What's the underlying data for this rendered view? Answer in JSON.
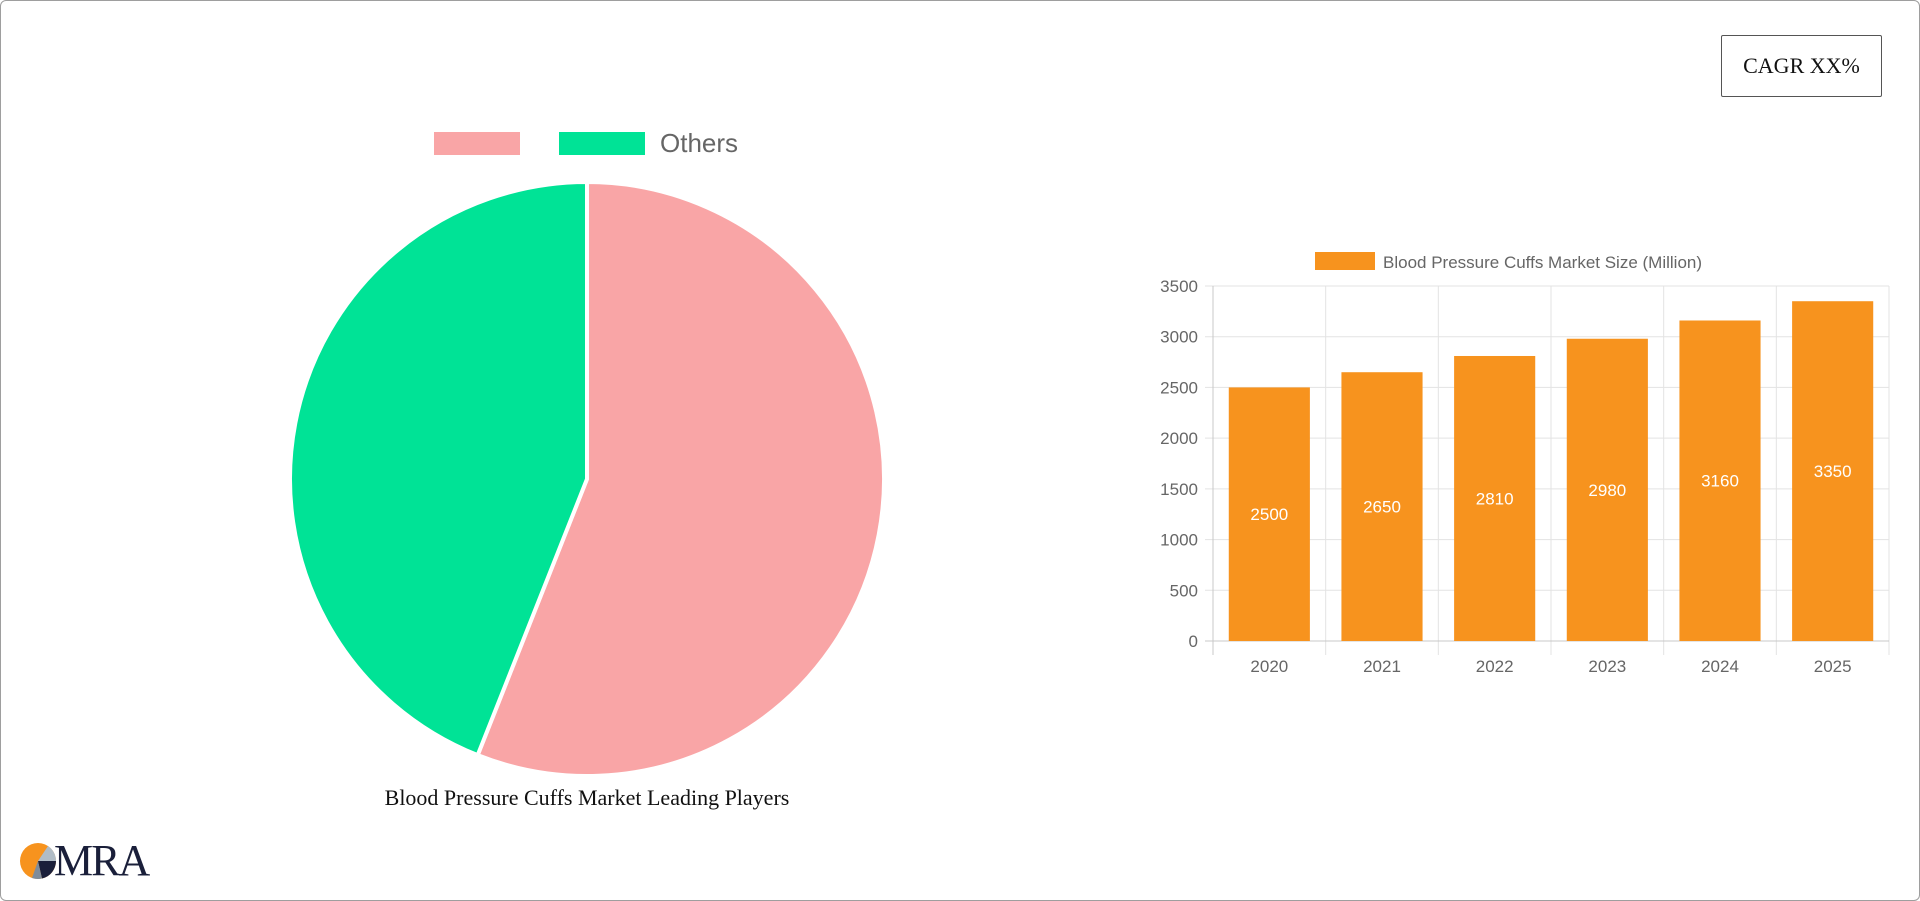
{
  "badge": {
    "cagr_label": "CAGR XX%"
  },
  "pie_chart": {
    "title": "Blood Pressure Cuffs Market Leading Players",
    "legend": [
      {
        "label": "",
        "color": "#f9a5a6"
      },
      {
        "label": "Others",
        "color": "#00e396"
      }
    ]
  },
  "chart_data": [
    {
      "type": "pie",
      "title": "Blood Pressure Cuffs Market Leading Players",
      "slices": [
        {
          "label": "",
          "value": 56,
          "color": "#f9a5a6"
        },
        {
          "label": "Others",
          "value": 44,
          "color": "#00e396"
        }
      ],
      "legend_position": "top"
    },
    {
      "type": "bar",
      "categories": [
        "2020",
        "2021",
        "2022",
        "2023",
        "2024",
        "2025"
      ],
      "series": [
        {
          "name": "Blood Pressure Cuffs Market Size (Million)",
          "values": [
            2500,
            2650,
            2810,
            2980,
            3160,
            3350
          ],
          "color": "#f7931e"
        }
      ],
      "yticks": [
        0,
        500,
        1000,
        1500,
        2000,
        2500,
        3000,
        3500
      ],
      "ylim": [
        0,
        3500
      ],
      "grid": true,
      "legend_position": "top",
      "data_labels": true
    }
  ],
  "logo": {
    "text": "MRA"
  }
}
